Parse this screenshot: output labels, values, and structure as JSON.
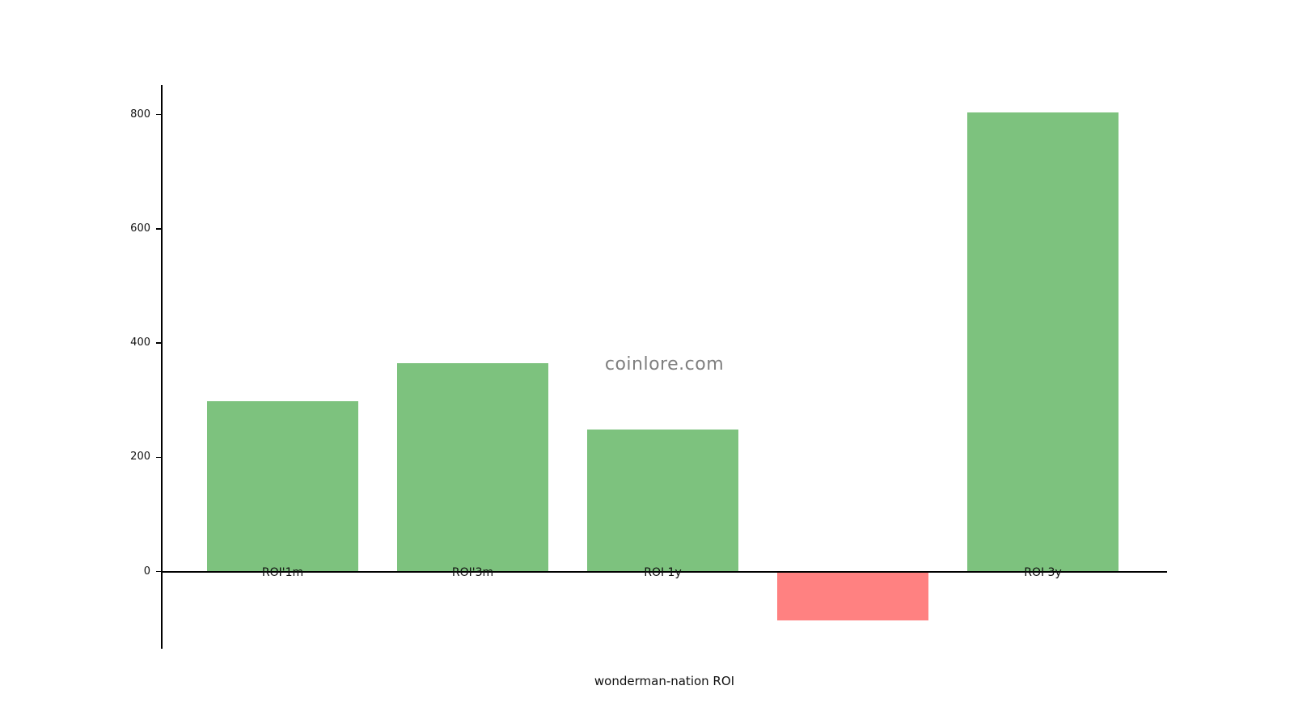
{
  "page": {
    "background": "#ffffff"
  },
  "watermark": {
    "text": "coinlore.com",
    "color": "#7f7f7f"
  },
  "title": {
    "text": "wonderman-nation ROI"
  },
  "chart_data": {
    "type": "bar",
    "title": "wonderman-nation ROI",
    "categories": [
      "ROI'1m",
      "ROI'3m",
      "ROI 1y",
      "",
      "ROI 3y"
    ],
    "values": [
      298,
      364,
      249,
      -86,
      804
    ],
    "positive_color": "#7dc27e",
    "negative_color": "#ff8181",
    "axis_color": "#000000",
    "y_ticks": [
      0,
      200,
      400,
      600,
      800
    ],
    "ylim": [
      -135,
      852
    ],
    "xlabel": "",
    "ylabel": "",
    "grid": false,
    "legend": false,
    "watermark": "coinlore.com"
  }
}
